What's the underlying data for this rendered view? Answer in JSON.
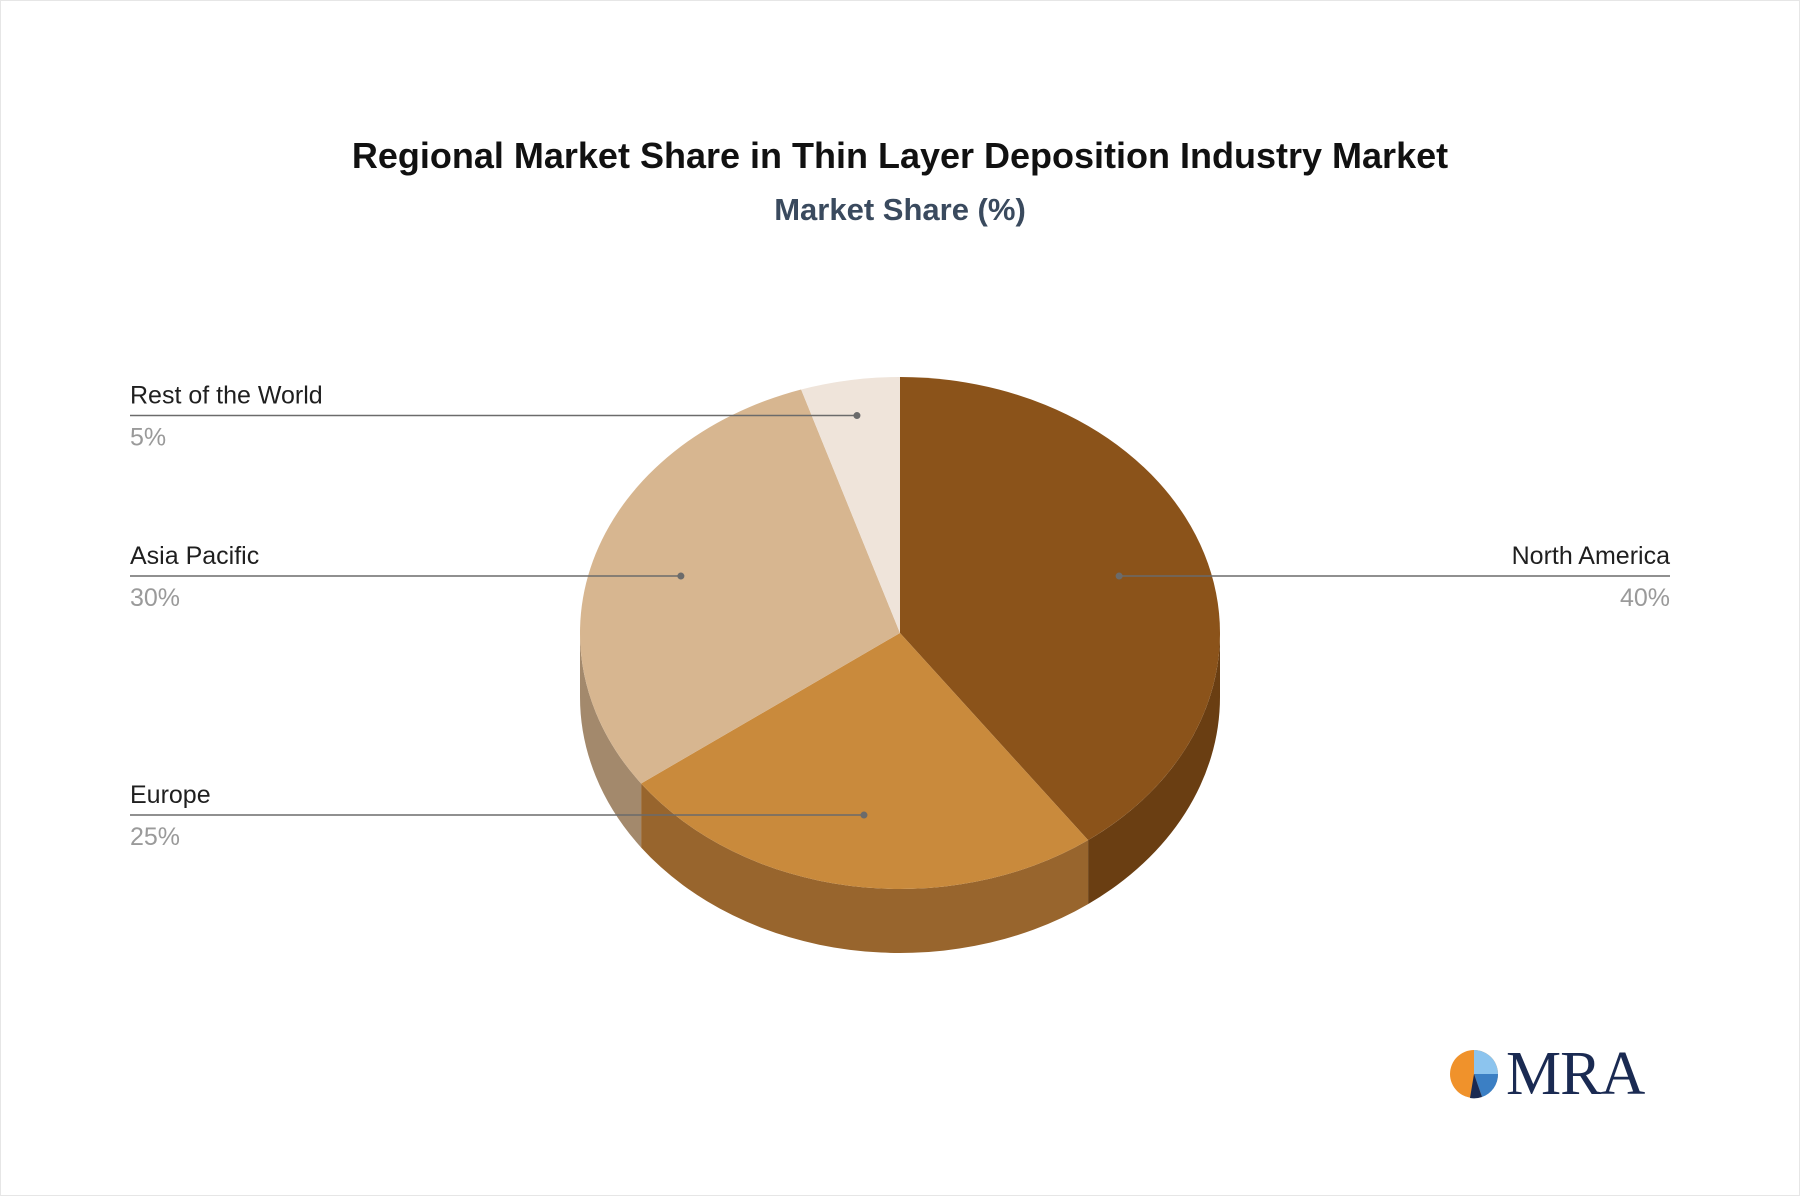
{
  "title": "Regional Market Share in Thin Layer Deposition Industry Market",
  "subtitle": "Market Share (%)",
  "chart_data": {
    "type": "pie",
    "title": "Regional Market Share in Thin Layer Deposition Industry Market",
    "subtitle": "Market Share (%)",
    "slices": [
      {
        "label": "North America",
        "value": 40,
        "value_label": "40%",
        "color": "#8b531a",
        "side_color": "#6a3e12"
      },
      {
        "label": "Europe",
        "value": 25,
        "value_label": "25%",
        "color": "#c98a3c",
        "side_color": "#98652d"
      },
      {
        "label": "Asia Pacific",
        "value": 30,
        "value_label": "30%",
        "color": "#d7b690",
        "side_color": "#a3896c"
      },
      {
        "label": "Rest of the World",
        "value": 5,
        "value_label": "5%",
        "color": "#efe4da",
        "side_color": "#b5aca4"
      }
    ]
  },
  "logo": {
    "text": "MRA",
    "colors": {
      "orange": "#f0922b",
      "navy": "#1a2a52",
      "blue": "#3b7fc4",
      "light_blue": "#8cc4ee"
    }
  }
}
